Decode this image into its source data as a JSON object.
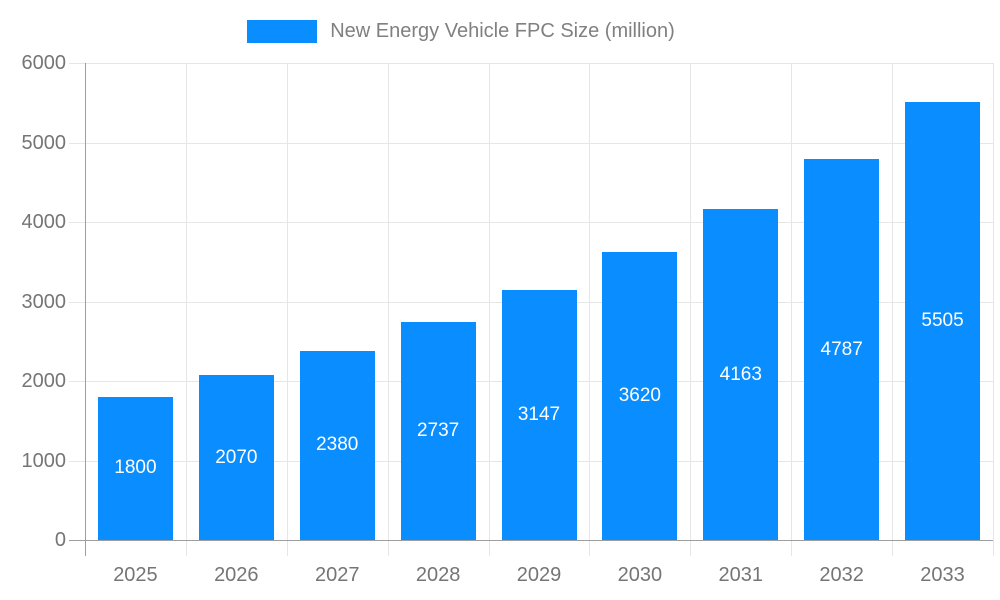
{
  "legend": {
    "label": "New Energy Vehicle FPC Size (million)"
  },
  "chart_data": {
    "type": "bar",
    "title": "New Energy Vehicle FPC Size (million)",
    "categories": [
      "2025",
      "2026",
      "2027",
      "2028",
      "2029",
      "2030",
      "2031",
      "2032",
      "2033"
    ],
    "values": [
      1800,
      2070,
      2380,
      2737,
      3147,
      3620,
      4163,
      4787,
      5505
    ],
    "series_name": "New Energy Vehicle FPC Size (million)",
    "xlabel": "",
    "ylabel": "",
    "ylim": [
      0,
      6000
    ],
    "yticks": [
      0,
      1000,
      2000,
      3000,
      4000,
      5000,
      6000
    ],
    "grid": true,
    "legend_position": "top",
    "bar_value_labels": true
  },
  "colors": {
    "bar": "#0a8dff",
    "grid": "#e6e6e6",
    "axis": "#9e9e9e",
    "tick_label": "#757575",
    "legend_text": "#808080",
    "bar_label_text": "#ffffff",
    "background": "#ffffff"
  }
}
